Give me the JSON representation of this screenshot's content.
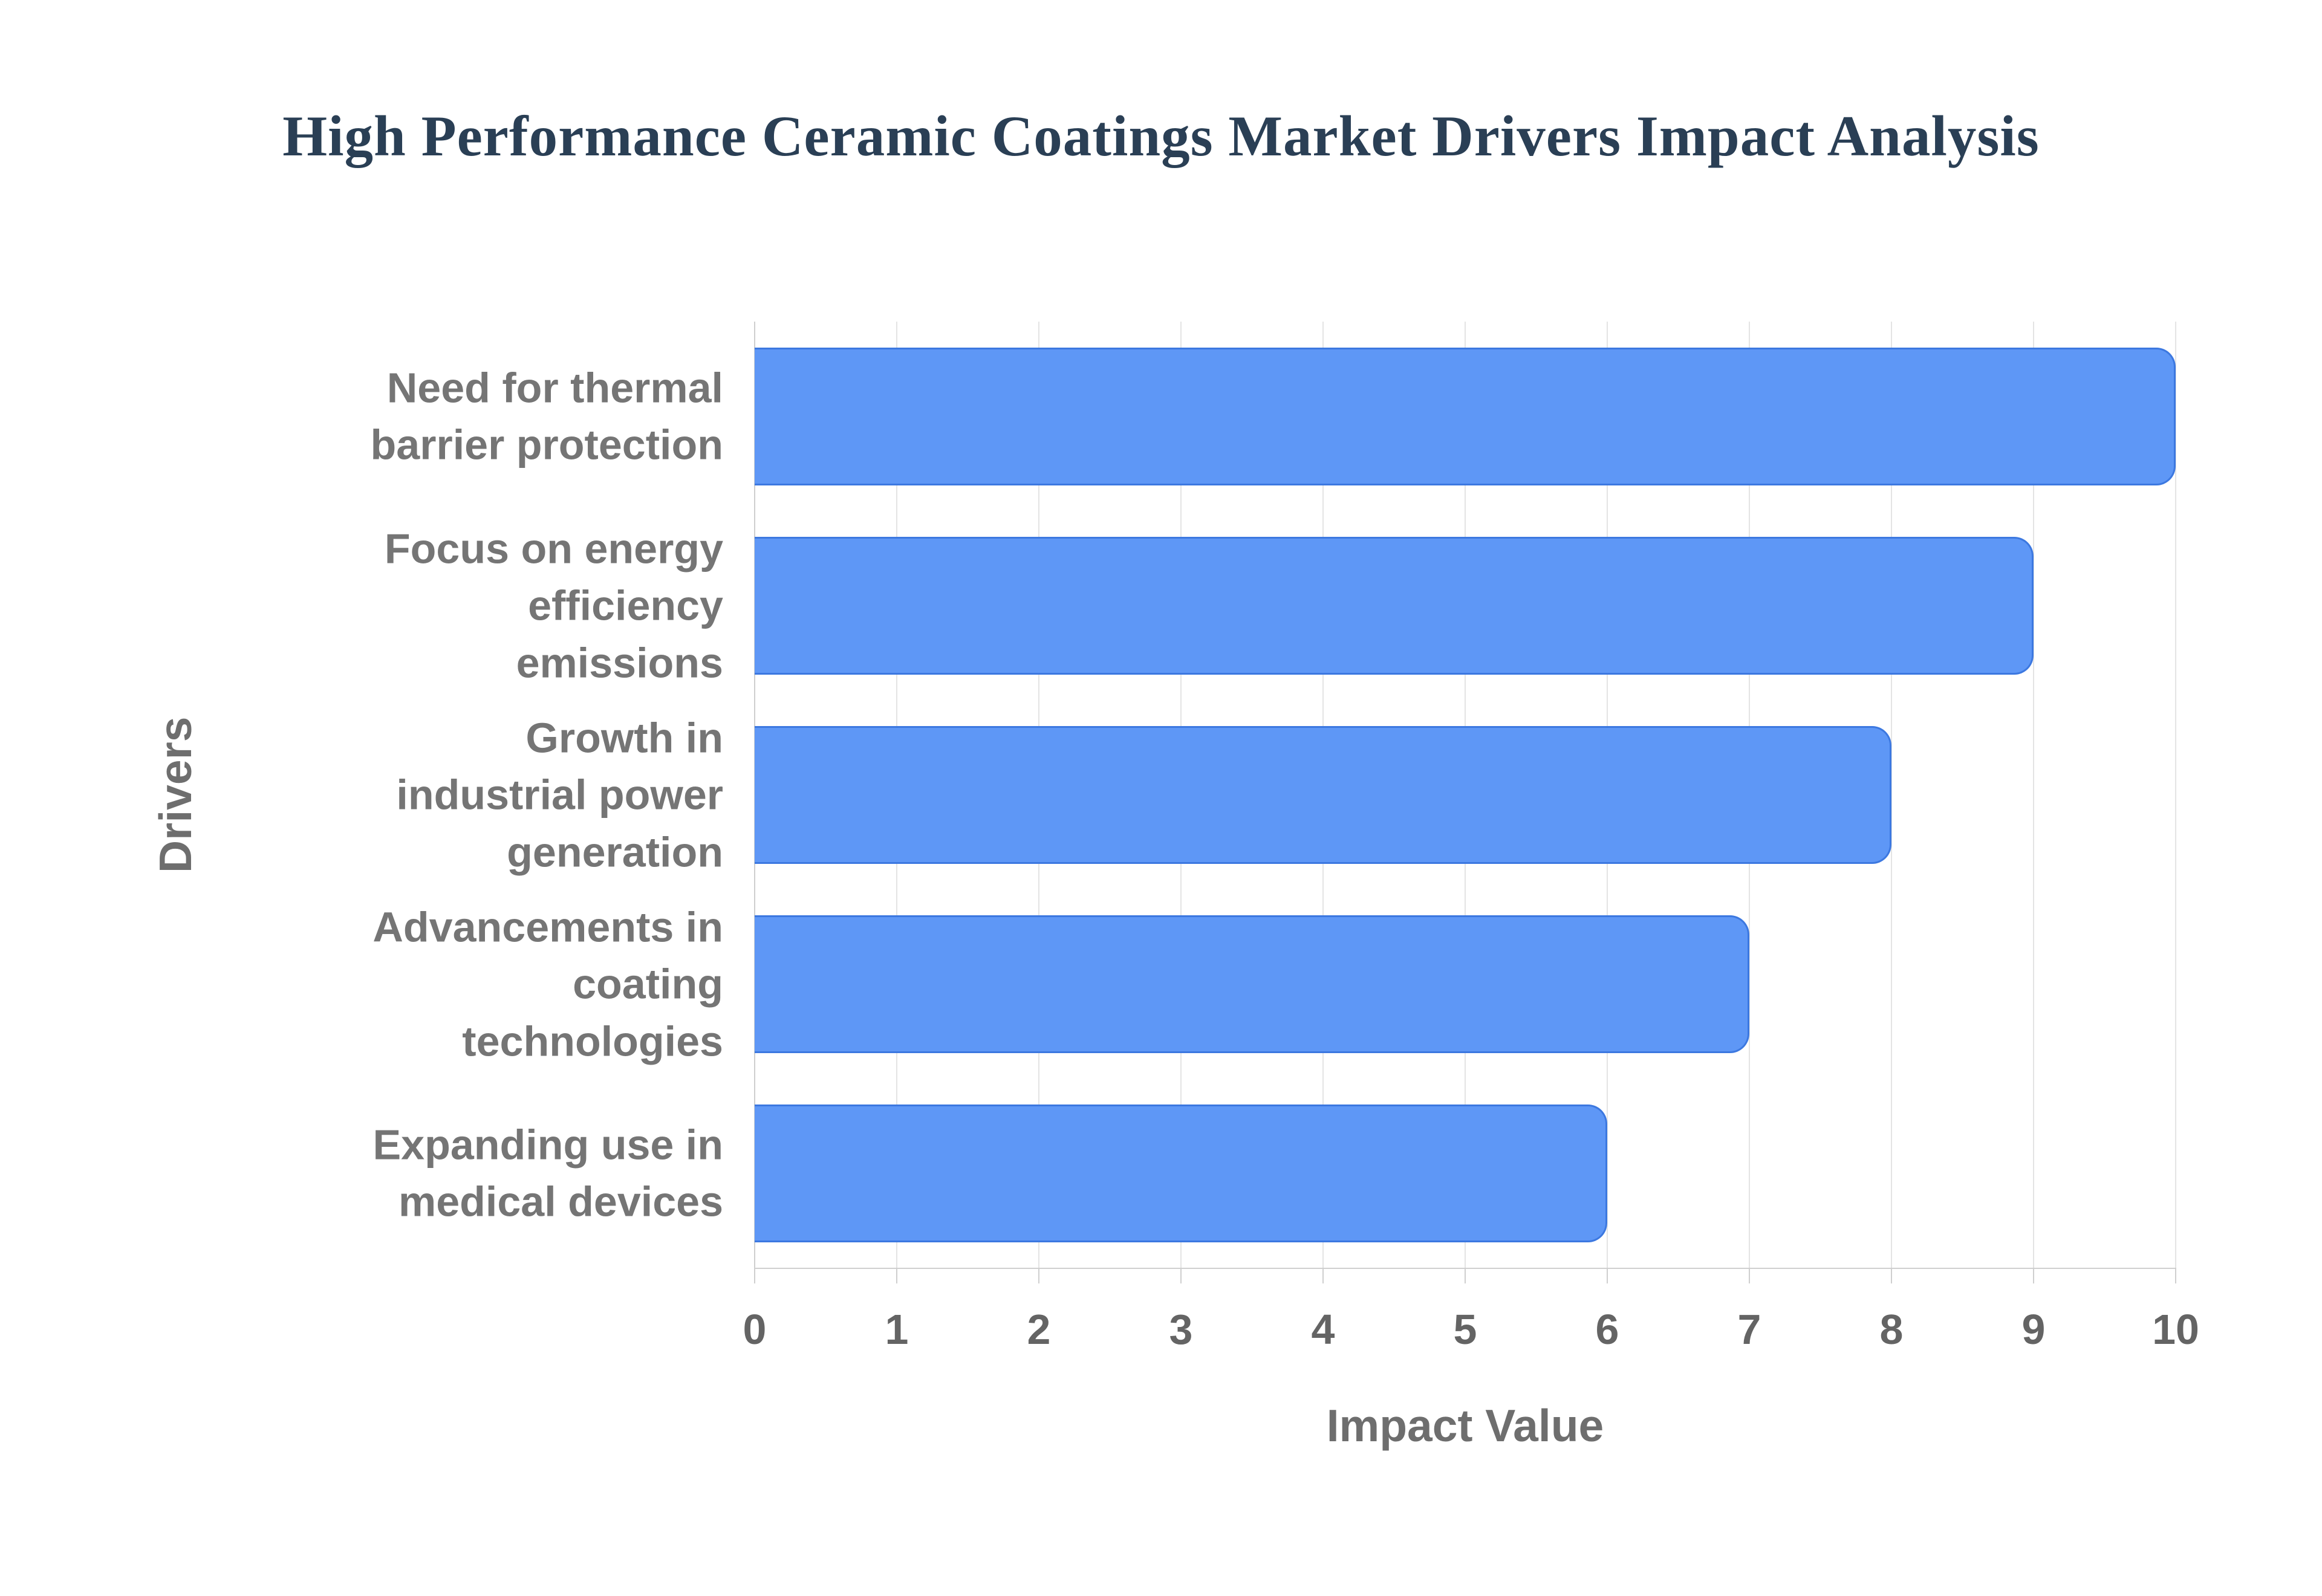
{
  "title": "High Performance Ceramic Coatings Market Drivers Impact Analysis",
  "chart_data": {
    "type": "bar",
    "orientation": "horizontal",
    "title": "High Performance Ceramic Coatings Market Drivers Impact Analysis",
    "categories": [
      "Need for thermal barrier protection",
      "Focus on energy efficiency emissions",
      "Growth in industrial power generation",
      "Advancements in coating technologies",
      "Expanding use in medical devices"
    ],
    "values": [
      10,
      9,
      8,
      7,
      6
    ],
    "xlabel": "Impact Value",
    "ylabel": "Drivers",
    "xlim": [
      0,
      10
    ],
    "xticks": [
      0,
      1,
      2,
      3,
      4,
      5,
      6,
      7,
      8,
      9,
      10
    ],
    "grid": true,
    "legend": "none",
    "colors": {
      "bar_fill": "#5e97f6",
      "bar_border": "#3c78e0",
      "gridline": "#e4e4e4",
      "axis_line": "#cfcfcf",
      "tick_label": "#646464",
      "category_label": "#757575",
      "axis_title": "#6e6e6e",
      "title": "#2a3f55"
    }
  }
}
